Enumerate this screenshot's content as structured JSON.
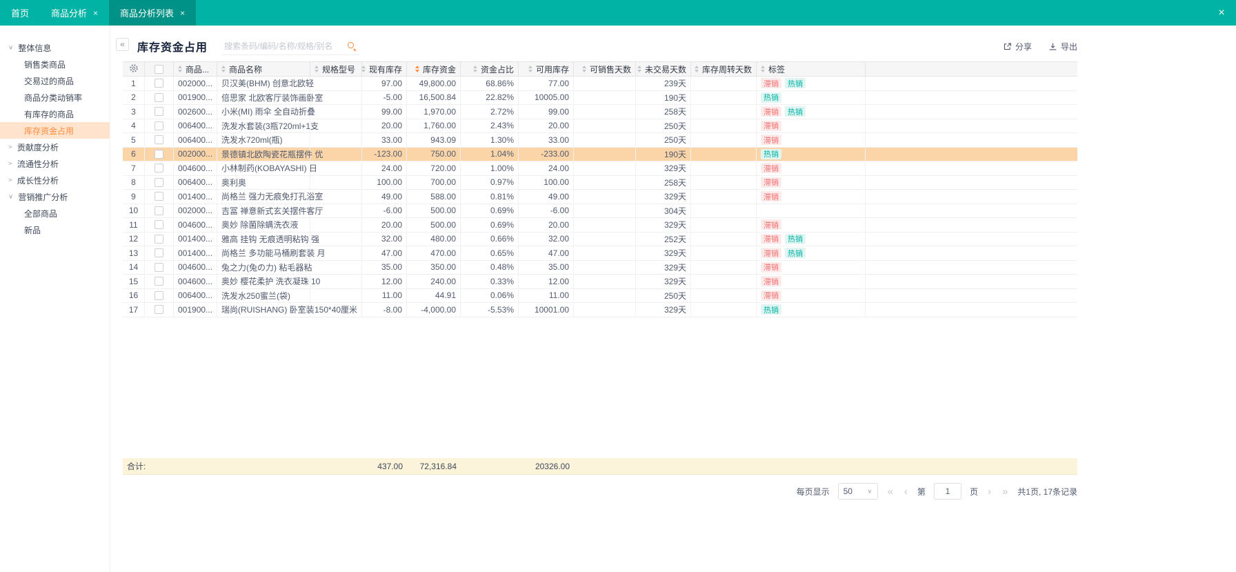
{
  "colors": {
    "accent_teal": "#00b3a4",
    "accent_orange": "#ff8c40",
    "highlight_row": "#fbd5a8",
    "summary_bg": "#fbf3da",
    "tag_red": "#f56c6c",
    "tag_red_bg": "#fdeaea",
    "tag_teal": "#00b3a4",
    "tag_teal_bg": "#e1f5f2"
  },
  "icons": {
    "chevron_down": "∨",
    "chevron_right": ">",
    "collapse": "«",
    "close": "×",
    "first_page": "«",
    "prev_page": "‹",
    "next_page": "›",
    "last_page": "»"
  },
  "topbar": {
    "tabs": [
      {
        "label": "首页",
        "closable": false,
        "active": false
      },
      {
        "label": "商品分析",
        "closable": true,
        "active": false
      },
      {
        "label": "商品分析列表",
        "closable": true,
        "active": true
      }
    ]
  },
  "sidebar": {
    "items": [
      {
        "label": "整体信息",
        "level": 0,
        "caret": "down",
        "active": false
      },
      {
        "label": "销售类商品",
        "level": 1,
        "active": false
      },
      {
        "label": "交易过的商品",
        "level": 1,
        "active": false
      },
      {
        "label": "商品分类动销率",
        "level": 1,
        "active": false
      },
      {
        "label": "有库存的商品",
        "level": 1,
        "active": false
      },
      {
        "label": "库存资金占用",
        "level": 1,
        "active": true
      },
      {
        "label": "贡献度分析",
        "level": 0,
        "caret": "right",
        "active": false
      },
      {
        "label": "流通性分析",
        "level": 0,
        "caret": "right",
        "active": false
      },
      {
        "label": "成长性分析",
        "level": 0,
        "caret": "right",
        "active": false
      },
      {
        "label": "营销推广分析",
        "level": 0,
        "caret": "down",
        "active": false
      },
      {
        "label": "全部商品",
        "level": 1,
        "active": false
      },
      {
        "label": "新品",
        "level": 1,
        "active": false
      }
    ]
  },
  "header": {
    "title": "库存资金占用",
    "search_placeholder": "搜索条码/编码/名称/规格/别名",
    "share_label": "分享",
    "export_label": "导出"
  },
  "table": {
    "tag_types": {
      "滞销": "red",
      "热销": "teal"
    },
    "columns": [
      {
        "label": "商品...",
        "key": "code",
        "align": "left",
        "width": 63,
        "sortable": true
      },
      {
        "label": "商品名称",
        "key": "name",
        "align": "left",
        "width": 135,
        "sortable": true
      },
      {
        "label": "规格型号",
        "key": "spec",
        "align": "left",
        "width": 75,
        "sortable": true
      },
      {
        "label": "现有库存",
        "key": "stock",
        "align": "right",
        "width": 65,
        "sortable": true
      },
      {
        "label": "库存资金",
        "key": "fund",
        "align": "right",
        "width": 78,
        "sortable": true,
        "sorted": "desc"
      },
      {
        "label": "资金占比",
        "key": "ratio",
        "align": "right",
        "width": 84,
        "sortable": true
      },
      {
        "label": "可用库存",
        "key": "available",
        "align": "right",
        "width": 80,
        "sortable": true
      },
      {
        "label": "可销售天数",
        "key": "sale_days",
        "align": "right",
        "width": 90,
        "sortable": true
      },
      {
        "label": "未交易天数",
        "key": "no_trade_days",
        "align": "right",
        "width": 80,
        "sortable": true
      },
      {
        "label": "库存周转天数",
        "key": "turnover_days",
        "align": "right",
        "width": 95,
        "sortable": true
      },
      {
        "label": "标签",
        "key": "tags",
        "align": "left",
        "width": 158,
        "sortable": true
      }
    ],
    "rows": [
      {
        "num": "1",
        "code": "002000...",
        "name": "贝汉美(BHM) 创意北欧轻",
        "spec": "",
        "stock": "97.00",
        "fund": "49,800.00",
        "ratio": "68.86%",
        "available": "77.00",
        "sale_days": "",
        "no_trade_days": "239天",
        "turnover_days": "",
        "tags": [
          "滞销",
          "热销"
        ],
        "highlight": false
      },
      {
        "num": "2",
        "code": "001900...",
        "name": "倍思家 北欧客厅装饰画卧室",
        "spec": "",
        "stock": "-5.00",
        "fund": "16,500.84",
        "ratio": "22.82%",
        "available": "10005.00",
        "sale_days": "",
        "no_trade_days": "190天",
        "turnover_days": "",
        "tags": [
          "热销"
        ],
        "highlight": false
      },
      {
        "num": "3",
        "code": "002600...",
        "name": "小米(MI) 雨伞 全自动折叠",
        "spec": "",
        "stock": "99.00",
        "fund": "1,970.00",
        "ratio": "2.72%",
        "available": "99.00",
        "sale_days": "",
        "no_trade_days": "258天",
        "turnover_days": "",
        "tags": [
          "滞销",
          "热销"
        ],
        "highlight": false
      },
      {
        "num": "4",
        "code": "006400...",
        "name": "洗发水套装(3瓶720ml+1支",
        "spec": "",
        "stock": "20.00",
        "fund": "1,760.00",
        "ratio": "2.43%",
        "available": "20.00",
        "sale_days": "",
        "no_trade_days": "250天",
        "turnover_days": "",
        "tags": [
          "滞销"
        ],
        "highlight": false
      },
      {
        "num": "5",
        "code": "006400...",
        "name": "洗发水720ml(瓶)",
        "spec": "",
        "stock": "33.00",
        "fund": "943.09",
        "ratio": "1.30%",
        "available": "33.00",
        "sale_days": "",
        "no_trade_days": "250天",
        "turnover_days": "",
        "tags": [
          "滞销"
        ],
        "highlight": false
      },
      {
        "num": "6",
        "code": "002000...",
        "name": "景德镇北欧陶瓷花瓶摆件 优",
        "spec": "",
        "stock": "-123.00",
        "fund": "750.00",
        "ratio": "1.04%",
        "available": "-233.00",
        "sale_days": "",
        "no_trade_days": "190天",
        "turnover_days": "",
        "tags": [
          "热销"
        ],
        "highlight": true
      },
      {
        "num": "7",
        "code": "004600...",
        "name": "小林制药(KOBAYASHI) 日",
        "spec": "",
        "stock": "24.00",
        "fund": "720.00",
        "ratio": "1.00%",
        "available": "24.00",
        "sale_days": "",
        "no_trade_days": "329天",
        "turnover_days": "",
        "tags": [
          "滞销"
        ],
        "highlight": false
      },
      {
        "num": "8",
        "code": "006400...",
        "name": "奥利奥",
        "spec": "",
        "stock": "100.00",
        "fund": "700.00",
        "ratio": "0.97%",
        "available": "100.00",
        "sale_days": "",
        "no_trade_days": "258天",
        "turnover_days": "",
        "tags": [
          "滞销"
        ],
        "highlight": false
      },
      {
        "num": "9",
        "code": "001400...",
        "name": "尚格兰 强力无痕免打孔浴室",
        "spec": "",
        "stock": "49.00",
        "fund": "588.00",
        "ratio": "0.81%",
        "available": "49.00",
        "sale_days": "",
        "no_trade_days": "329天",
        "turnover_days": "",
        "tags": [
          "滞销"
        ],
        "highlight": false
      },
      {
        "num": "10",
        "code": "002000...",
        "name": "吉冨 禅意新式玄关摆件客厅",
        "spec": "",
        "stock": "-6.00",
        "fund": "500.00",
        "ratio": "0.69%",
        "available": "-6.00",
        "sale_days": "",
        "no_trade_days": "304天",
        "turnover_days": "",
        "tags": [],
        "highlight": false
      },
      {
        "num": "11",
        "code": "004600...",
        "name": "奥妙 除菌除螨洗衣液",
        "spec": "",
        "stock": "20.00",
        "fund": "500.00",
        "ratio": "0.69%",
        "available": "20.00",
        "sale_days": "",
        "no_trade_days": "329天",
        "turnover_days": "",
        "tags": [
          "滞销"
        ],
        "highlight": false
      },
      {
        "num": "12",
        "code": "001400...",
        "name": "雅高 挂钩 无痕透明粘钩 强",
        "spec": "",
        "stock": "32.00",
        "fund": "480.00",
        "ratio": "0.66%",
        "available": "32.00",
        "sale_days": "",
        "no_trade_days": "252天",
        "turnover_days": "",
        "tags": [
          "滞销",
          "热销"
        ],
        "highlight": false
      },
      {
        "num": "13",
        "code": "001400...",
        "name": "尚格兰 多功能马桶刷套装 月",
        "spec": "",
        "stock": "47.00",
        "fund": "470.00",
        "ratio": "0.65%",
        "available": "47.00",
        "sale_days": "",
        "no_trade_days": "329天",
        "turnover_days": "",
        "tags": [
          "滞销",
          "热销"
        ],
        "highlight": false
      },
      {
        "num": "14",
        "code": "004600...",
        "name": "兔之力(兔の力) 粘毛器粘",
        "spec": "",
        "stock": "35.00",
        "fund": "350.00",
        "ratio": "0.48%",
        "available": "35.00",
        "sale_days": "",
        "no_trade_days": "329天",
        "turnover_days": "",
        "tags": [
          "滞销"
        ],
        "highlight": false
      },
      {
        "num": "15",
        "code": "004600...",
        "name": "奥妙 樱花柔护 洗衣凝珠 10",
        "spec": "",
        "stock": "12.00",
        "fund": "240.00",
        "ratio": "0.33%",
        "available": "12.00",
        "sale_days": "",
        "no_trade_days": "329天",
        "turnover_days": "",
        "tags": [
          "滞销"
        ],
        "highlight": false
      },
      {
        "num": "16",
        "code": "006400...",
        "name": "洗发水250蜜兰(袋)",
        "spec": "",
        "stock": "11.00",
        "fund": "44.91",
        "ratio": "0.06%",
        "available": "11.00",
        "sale_days": "",
        "no_trade_days": "250天",
        "turnover_days": "",
        "tags": [
          "滞销"
        ],
        "highlight": false
      },
      {
        "num": "17",
        "code": "001900...",
        "name": "瑞尚(RUISHANG) 卧室装",
        "spec": "150*40厘米",
        "stock": "-8.00",
        "fund": "-4,000.00",
        "ratio": "-5.53%",
        "available": "10001.00",
        "sale_days": "",
        "no_trade_days": "329天",
        "turnover_days": "",
        "tags": [
          "热销"
        ],
        "highlight": false
      }
    ]
  },
  "summary": {
    "label": "合计:",
    "totals": {
      "stock": "437.00",
      "fund": "72,316.84",
      "available": "20326.00"
    }
  },
  "pagination": {
    "page_size_label": "每页显示",
    "page_size": "50",
    "page_prefix": "第",
    "page_value": "1",
    "page_suffix": "页",
    "total_text": "共1页, 17条记录"
  }
}
